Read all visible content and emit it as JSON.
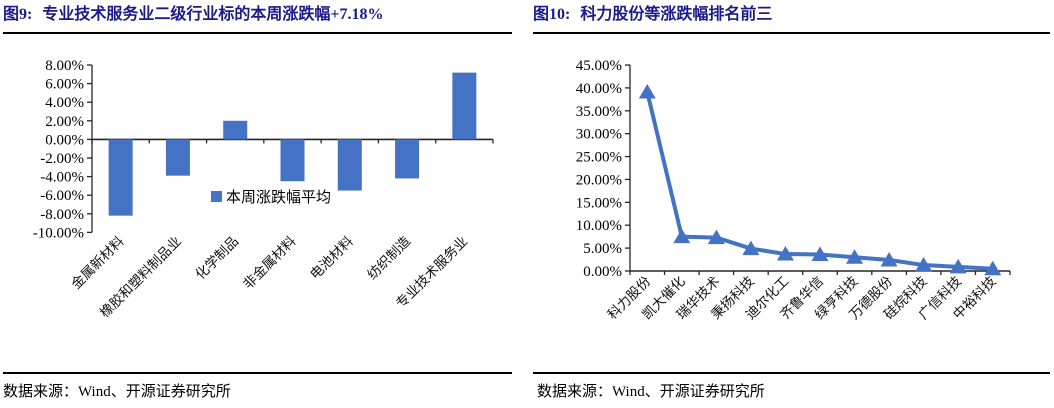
{
  "page": {
    "background": "#ffffff"
  },
  "colors": {
    "accent_blue": "#4472C4",
    "title_navy": "#1a1a8c",
    "axis_gray": "#262626",
    "text_black": "#000000"
  },
  "figures": [
    {
      "title_label": "图9:",
      "title_text": "专业技术服务业二级行业标的本周涨跌幅+7.18%",
      "source": "数据来源：Wind、开源证券研究所"
    },
    {
      "title_label": "图10:",
      "title_text": "科力股份等涨跌幅排名前三",
      "source": "数据来源：Wind、开源证券研究所"
    }
  ],
  "chart_data": [
    {
      "type": "bar",
      "title": "专业技术服务业二级行业标的本周涨跌幅+7.18%",
      "categories": [
        "金属新材料",
        "橡胶和塑料制品业",
        "化学制品",
        "非金属材料",
        "电池材料",
        "纺织制造",
        "专业技术服务业"
      ],
      "values": [
        -8.2,
        -3.9,
        2.0,
        -4.5,
        -5.5,
        -4.2,
        7.18
      ],
      "unit": "%",
      "ylim": [
        -10,
        8
      ],
      "ytick_step": 2,
      "ytick_format": "0.00%",
      "legend": "本周涨跌幅平均",
      "legend_position": "inside-center",
      "bar_color": "#4472C4",
      "grid": false
    },
    {
      "type": "line",
      "title": "科力股份等涨跌幅排名前三",
      "categories": [
        "科力股份",
        "凯大催化",
        "瑞华技术",
        "秉扬科技",
        "迪尔化工",
        "齐鲁华信",
        "绿亨科技",
        "万德股份",
        "硅烷科技",
        "广信科技",
        "中裕科技"
      ],
      "values": [
        39.1,
        7.5,
        7.3,
        4.9,
        3.7,
        3.6,
        3.0,
        2.4,
        1.3,
        0.9,
        0.5
      ],
      "unit": "%",
      "ylim": [
        0,
        45
      ],
      "ytick_step": 5,
      "ytick_format": "0.00%",
      "marker": "triangle",
      "line_color": "#4472C4",
      "grid": false
    }
  ]
}
